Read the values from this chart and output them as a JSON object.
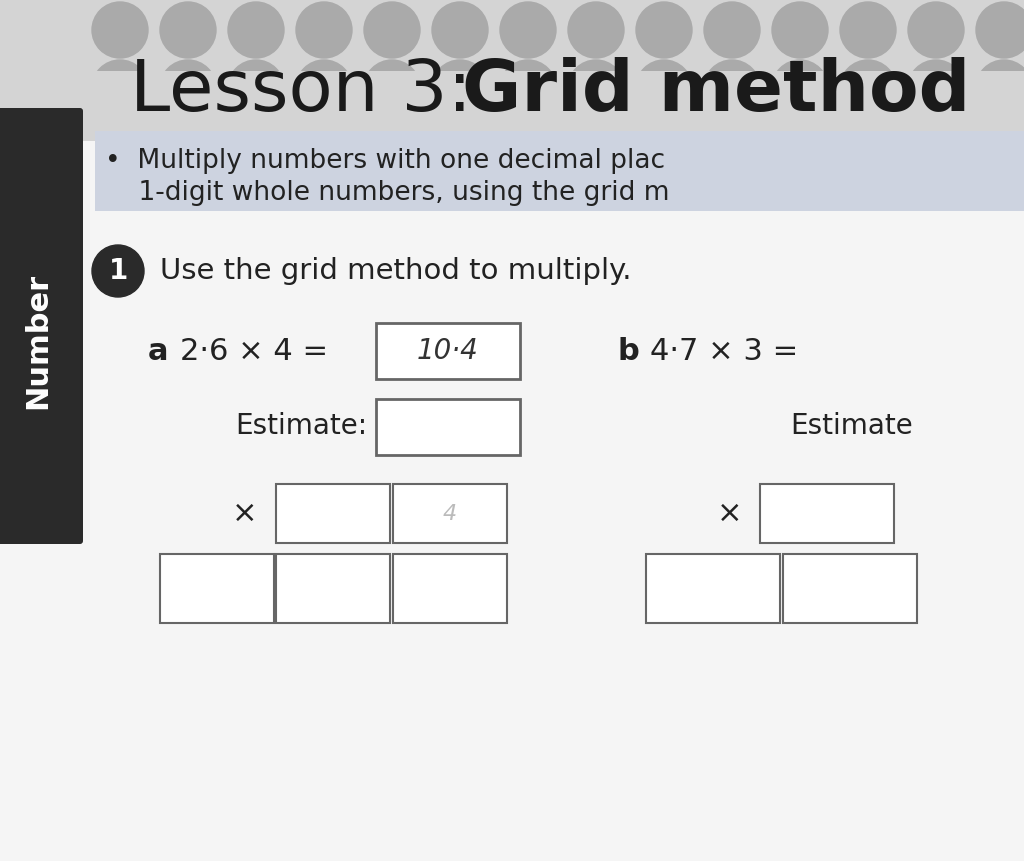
{
  "title_regular": "Lesson 3: ",
  "title_bold": "Grid method",
  "bullet_text_line1": "•  Multiply numbers with one decimal plac",
  "bullet_text_line2": "    1-digit whole numbers, using the grid m",
  "instruction_text": "Use the grid method to multiply.",
  "part_a_label": "a",
  "part_a_equation": "2·6 × 4 =",
  "part_a_answer": "10·4",
  "part_b_label": "b",
  "part_b_equation": "4·7 × 3 =",
  "estimate_label_a": "Estimate:",
  "estimate_label_b": "Estimate",
  "bg_color": "#d4d4d4",
  "page_white": "#f5f5f5",
  "black_tab_color": "#2a2a2a",
  "tab_text_color": "#ffffff",
  "circle_bg": "#2a2a2a",
  "circle_text": "#ffffff",
  "box_border_color": "#666666",
  "white": "#ffffff",
  "bullet_box_color": "#cdd3e0",
  "dot_color": "#aaaaaa",
  "title_color": "#1a1a1a",
  "text_color": "#222222"
}
